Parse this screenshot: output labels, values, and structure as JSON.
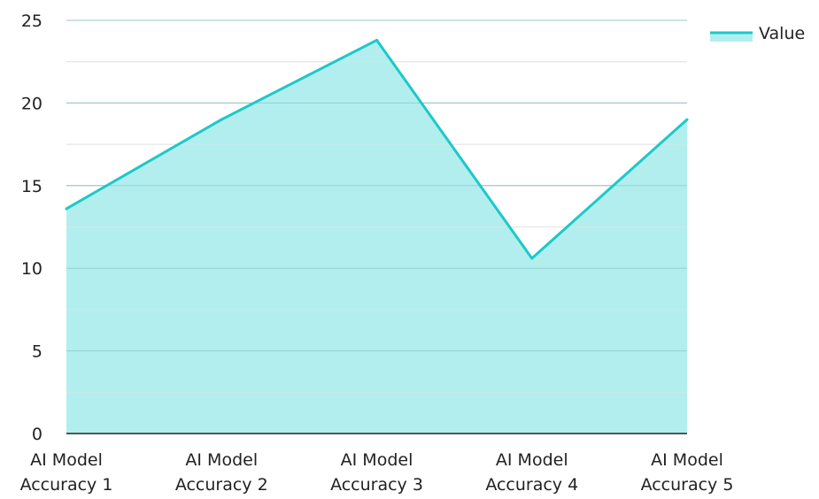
{
  "chart_data": {
    "type": "area",
    "title": "",
    "xlabel": "",
    "ylabel": "",
    "categories": [
      [
        "AI Model",
        "Accuracy 1"
      ],
      [
        "AI Model",
        "Accuracy 2"
      ],
      [
        "AI Model",
        "Accuracy 3"
      ],
      [
        "AI Model",
        "Accuracy 4"
      ],
      [
        "AI Model",
        "Accuracy 5"
      ]
    ],
    "series": [
      {
        "name": "Value",
        "values": [
          13.6,
          19.0,
          23.8,
          10.6,
          19.0
        ]
      }
    ],
    "ylim": [
      0,
      25
    ],
    "yticks": [
      "0",
      "5",
      "10",
      "15",
      "20",
      "25"
    ],
    "grid": true,
    "legend_position": "top-right",
    "colors": {
      "line": "#1ec8c8",
      "fill": "#b2eeee",
      "grid_major": "#bdbdbd",
      "grid_minor": "#e3e3e3",
      "axis": "#222222"
    }
  }
}
